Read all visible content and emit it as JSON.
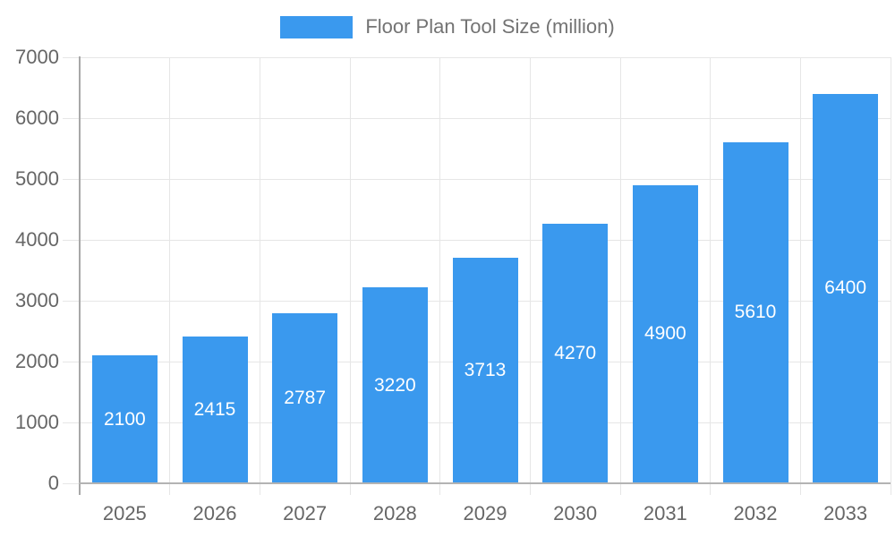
{
  "legend": {
    "label": "Floor Plan Tool Size (million)",
    "position": "top"
  },
  "colors": {
    "bar": "#3a99ee",
    "grid": "#e6e6e6",
    "y_axis": "#a8a8a8",
    "x_axis": "#b3b3b3",
    "tick_label": "#666666",
    "legend_text": "#737373",
    "value_label": "#ffffff",
    "background": "#ffffff"
  },
  "chart_data": {
    "type": "bar",
    "title": "Floor Plan Tool Size (million)",
    "series_name": "Floor Plan Tool Size (million)",
    "categories": [
      "2025",
      "2026",
      "2027",
      "2028",
      "2029",
      "2030",
      "2031",
      "2032",
      "2033"
    ],
    "values": [
      2100,
      2415,
      2787,
      3220,
      3713,
      4270,
      4900,
      5610,
      6400
    ],
    "xlabel": "",
    "ylabel": "",
    "ylim": [
      0,
      7000
    ],
    "ytick_step": 1000,
    "yticks": [
      0,
      1000,
      2000,
      3000,
      4000,
      5000,
      6000,
      7000
    ],
    "grid": true,
    "legend_position": "top-center",
    "value_labels": "inside-center-white"
  }
}
